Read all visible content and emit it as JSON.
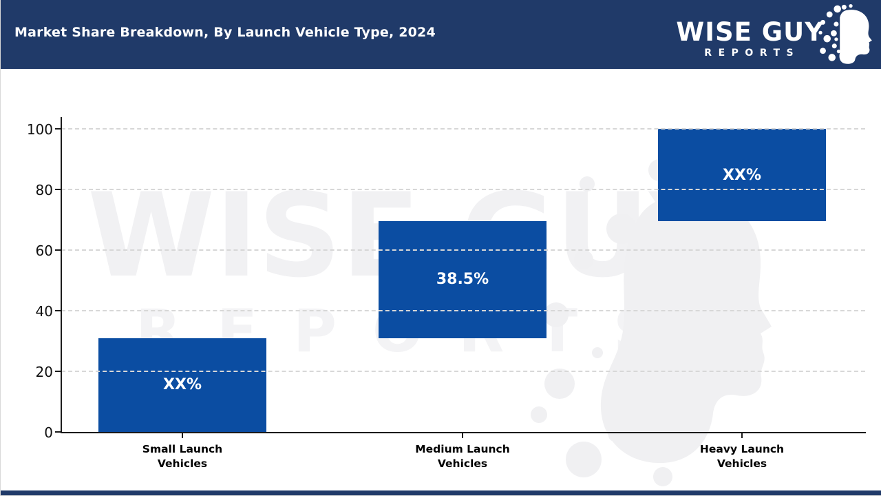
{
  "header": {
    "title": "Market Share Breakdown, By Launch Vehicle Type, 2024",
    "logo": {
      "name": "WISE GUY",
      "tagline": "REPORTS"
    }
  },
  "watermark": {
    "name": "WISE GUY",
    "tagline": "REPORTS"
  },
  "chart_data": {
    "type": "bar",
    "subtype": "floating-waterfall",
    "title": "Market Share Breakdown, By Launch Vehicle Type, 2024",
    "categories": [
      "Small Launch Vehicles",
      "Medium Launch Vehicles",
      "Heavy Launch Vehicles"
    ],
    "segments": [
      {
        "category": "Small Launch Vehicles",
        "start": 0,
        "end": 31,
        "label": "XX%"
      },
      {
        "category": "Medium Launch Vehicles",
        "start": 31,
        "end": 69.5,
        "label": "38.5%"
      },
      {
        "category": "Heavy Launch Vehicles",
        "start": 69.5,
        "end": 100,
        "label": "XX%"
      }
    ],
    "values": [
      31,
      38.5,
      30.5
    ],
    "xlabel": "",
    "ylabel": "",
    "ylim": [
      0,
      100
    ],
    "yticks": [
      0,
      20,
      40,
      60,
      80,
      100
    ],
    "grid": "dashed-horizontal",
    "legend": "none",
    "bar_color": "#0B4DA2",
    "bar_label_color": "#FFFFFF"
  },
  "colors": {
    "header_bg": "#203A69",
    "footer_bg": "#203A69",
    "bar": "#0B4DA2",
    "gridline": "#D7D7D7",
    "axis": "#1A1A1A",
    "watermark": "#F1F1F3"
  }
}
